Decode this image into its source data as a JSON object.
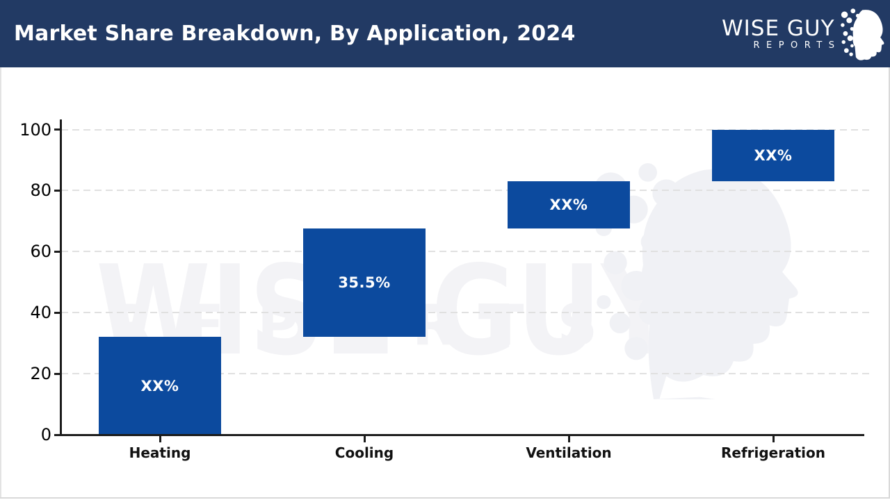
{
  "header": {
    "title": "Market Share Breakdown, By Application, 2024",
    "logo": {
      "line1": "WISE GUY",
      "line2": "REPORTS"
    }
  },
  "watermark": {
    "line1": "WISE GUY",
    "line2": "REPORTS"
  },
  "colors": {
    "header_background": "#223A64",
    "bar_blue": "#0C4A9E",
    "gridline_gray": "#E0E0E0",
    "axis_black": "#1C1C1C"
  },
  "chart_data": {
    "type": "bar",
    "subtype": "waterfall",
    "title": "Market Share Breakdown, By Application, 2024",
    "categories": [
      "Heating",
      "Cooling",
      "Ventilation",
      "Refrigeration"
    ],
    "segments": [
      {
        "category": "Heating",
        "start": 0,
        "end": 32,
        "increment": 32,
        "label": "XX%"
      },
      {
        "category": "Cooling",
        "start": 32,
        "end": 67.5,
        "increment": 35.5,
        "label": "35.5%"
      },
      {
        "category": "Ventilation",
        "start": 67.5,
        "end": 83,
        "increment": 15.5,
        "label": "XX%"
      },
      {
        "category": "Refrigeration",
        "start": 83,
        "end": 100,
        "increment": 17,
        "label": "XX%"
      }
    ],
    "xlabel": "",
    "ylabel": "",
    "ylim": [
      0,
      100
    ],
    "yticks": [
      0,
      20,
      40,
      60,
      80,
      100
    ],
    "grid": "horizontal-dashed",
    "legend": "none",
    "bar_color": "#0C4A9E",
    "bar_label_color": "#FFFFFF"
  }
}
